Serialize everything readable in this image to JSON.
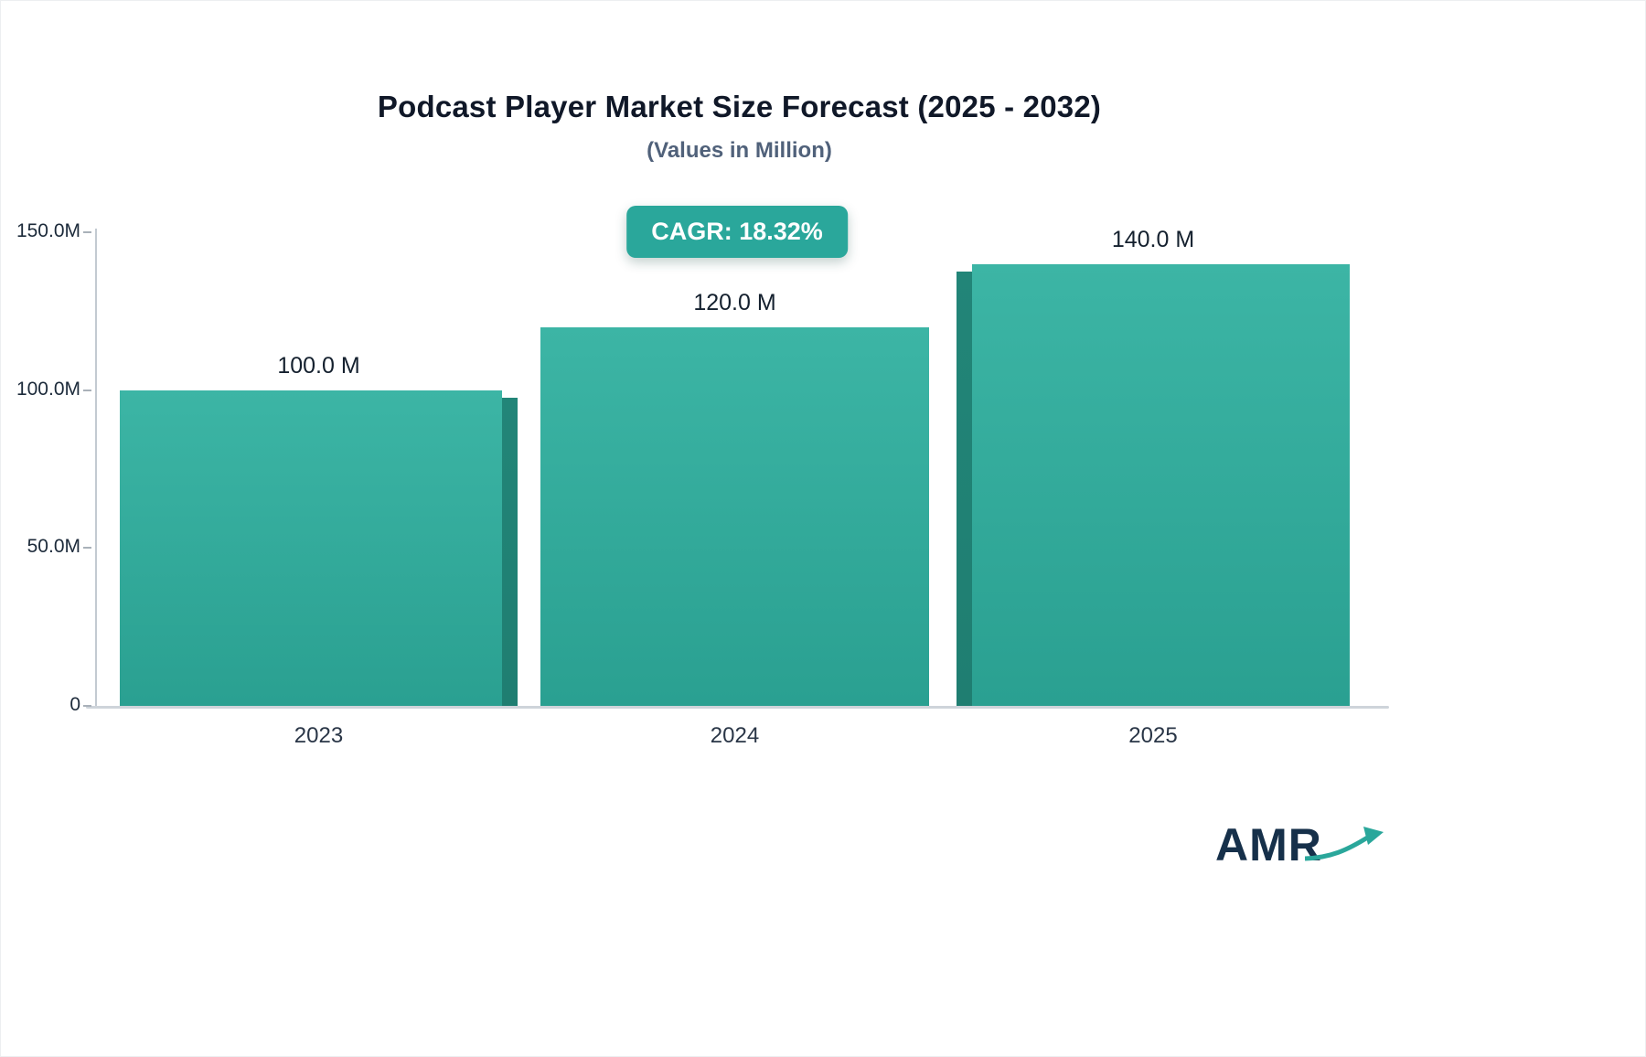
{
  "chart_data": {
    "type": "bar",
    "title": "Podcast Player Market Size Forecast (2025 - 2032)",
    "subtitle": "(Values in Million)",
    "annotation": "CAGR: 18.32%",
    "categories": [
      "2023",
      "2024",
      "2025"
    ],
    "values": [
      100.0,
      120.0,
      140.0
    ],
    "value_labels": [
      "100.0 M",
      "120.0 M",
      "140.0 M"
    ],
    "unit": "Million",
    "ylim": [
      0,
      150
    ],
    "yticks": [
      0,
      50,
      100,
      150
    ],
    "ytick_labels": [
      "0",
      "50.0M",
      "100.0M",
      "150.0M"
    ],
    "grid": false,
    "legend": false,
    "bar_gradient_top": "#3cb5a5",
    "bar_gradient_bottom": "#2aa091",
    "bar_side_color": "#1f7e71",
    "accent_color": "#2aa79b"
  },
  "branding": {
    "logo_text": "AMR",
    "logo_color": "#16304a",
    "arrow_color": "#2aa79b"
  }
}
